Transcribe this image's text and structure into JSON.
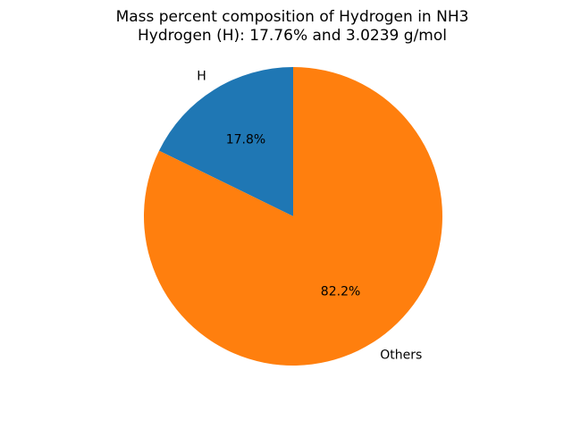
{
  "title": {
    "line1": "Mass percent composition of Hydrogen in NH3",
    "line2": "Hydrogen (H): 17.76% and 3.0239 g/mol"
  },
  "chart_data": {
    "type": "pie",
    "title": "Mass percent composition of Hydrogen in NH3",
    "subtitle": "Hydrogen (H): 17.76% and 3.0239 g/mol",
    "labels": [
      "H",
      "Others"
    ],
    "values": [
      17.76,
      82.24
    ],
    "autopct_labels": [
      "17.8%",
      "82.2%"
    ],
    "colors": [
      "#1f77b4",
      "#ff7f0e"
    ],
    "start_angle_deg": 90,
    "counterclockwise": true,
    "label_distance": 1.1,
    "pct_distance": 0.6,
    "legend": false,
    "background_color": "#ffffff",
    "text_color": "#000000"
  }
}
